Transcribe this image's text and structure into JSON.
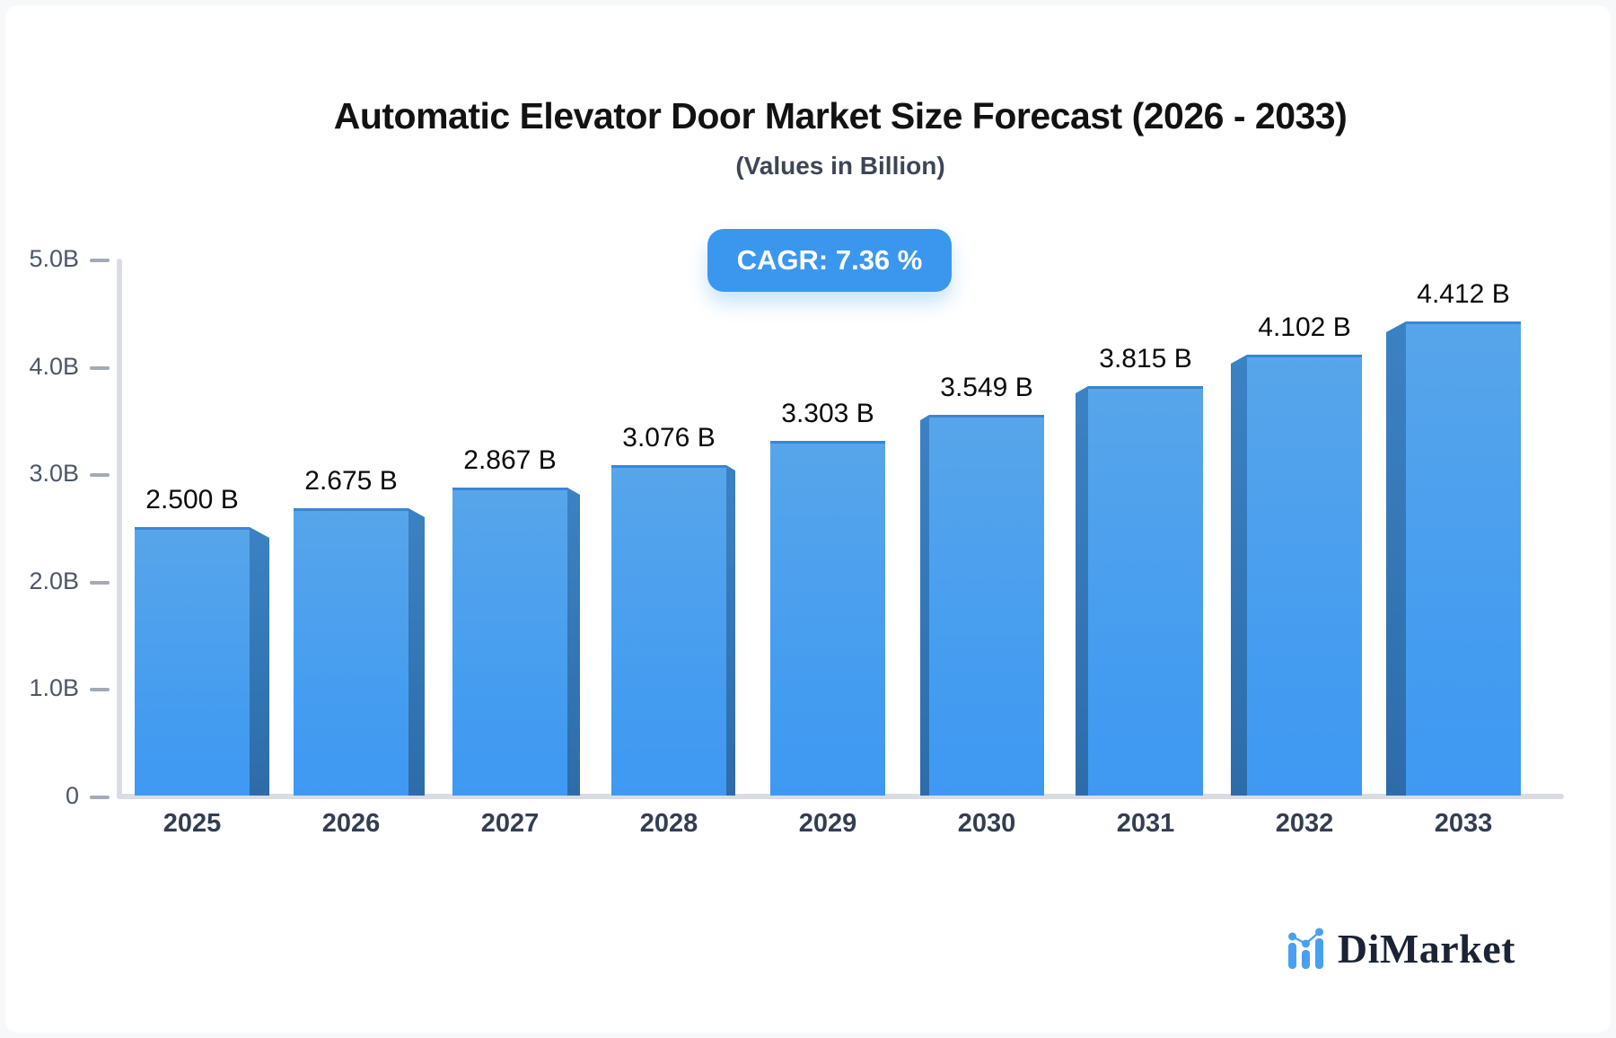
{
  "chart_data": {
    "type": "bar",
    "title": "Automatic Elevator Door Market Size Forecast (2026 - 2033)",
    "subtitle": "(Values in Billion)",
    "badge": "CAGR: 7.36 %",
    "categories": [
      "2025",
      "2026",
      "2027",
      "2028",
      "2029",
      "2030",
      "2031",
      "2032",
      "2033"
    ],
    "values": [
      2.5,
      2.675,
      2.867,
      3.076,
      3.303,
      3.549,
      3.815,
      4.102,
      4.412
    ],
    "bar_labels": [
      "2.500 B",
      "2.675 B",
      "2.867 B",
      "3.076 B",
      "3.303 B",
      "3.549 B",
      "3.815 B",
      "4.102 B",
      "4.412 B"
    ],
    "y_ticks": [
      {
        "value": 5.0,
        "label": "5.0B"
      },
      {
        "value": 4.0,
        "label": "4.0B"
      },
      {
        "value": 3.0,
        "label": "3.0B"
      },
      {
        "value": 2.0,
        "label": "2.0B"
      },
      {
        "value": 1.0,
        "label": "1.0B"
      },
      {
        "value": 0.0,
        "label": "0"
      }
    ],
    "ylim": [
      0,
      5
    ],
    "xlabel": "",
    "ylabel": "",
    "grid": false,
    "legend": false,
    "style": "3d-perspective-bars",
    "colors": {
      "bar_front_top": "#57a5ea",
      "bar_front_bottom": "#3f99f2",
      "bar_side": "#3b82c4",
      "badge_bg": "#3b97ee",
      "badge_text": "#ffffff",
      "axis": "#d9dde3",
      "title_text": "#121212",
      "subtitle_text": "#3d4656",
      "value_label_text": "#0a0a0a",
      "x_label_text": "#333e52",
      "y_tick_text": "#4d5769"
    }
  },
  "logo": {
    "brand": "DiMarket",
    "icon": "bar-chart-with-trend-dots-icon",
    "icon_color": "#4aa0f0",
    "text_color": "#1b2334"
  }
}
